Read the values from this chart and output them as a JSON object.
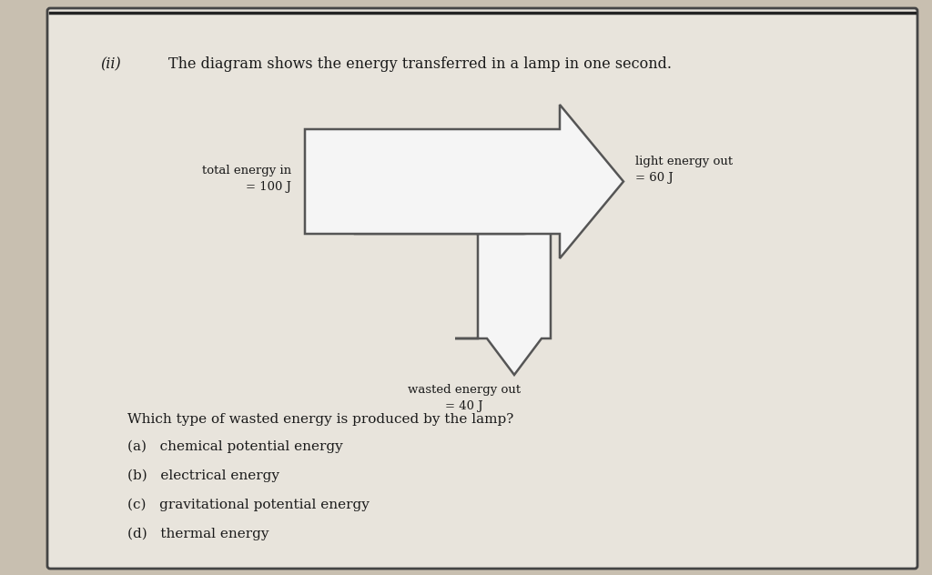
{
  "title_ii": "(ii)",
  "title_text": "The diagram shows the energy transferred in a lamp in one second.",
  "arrow_fill": "#f5f5f5",
  "arrow_edge": "#555555",
  "total_energy_label": "total energy in\n= 100 J",
  "light_energy_label": "light energy out\n= 60 J",
  "wasted_energy_label": "wasted energy out\n= 40 J",
  "question": "Which type of wasted energy is produced by the lamp?",
  "options": [
    "(a)   chemical potential energy",
    "(b)   electrical energy",
    "(c)   gravitational potential energy",
    "(d)   thermal energy"
  ],
  "bg_outer_color": "#c8bfb0",
  "paper_color": "#e8e4dc",
  "text_color": "#1a1a1a",
  "border_color": "#444444"
}
